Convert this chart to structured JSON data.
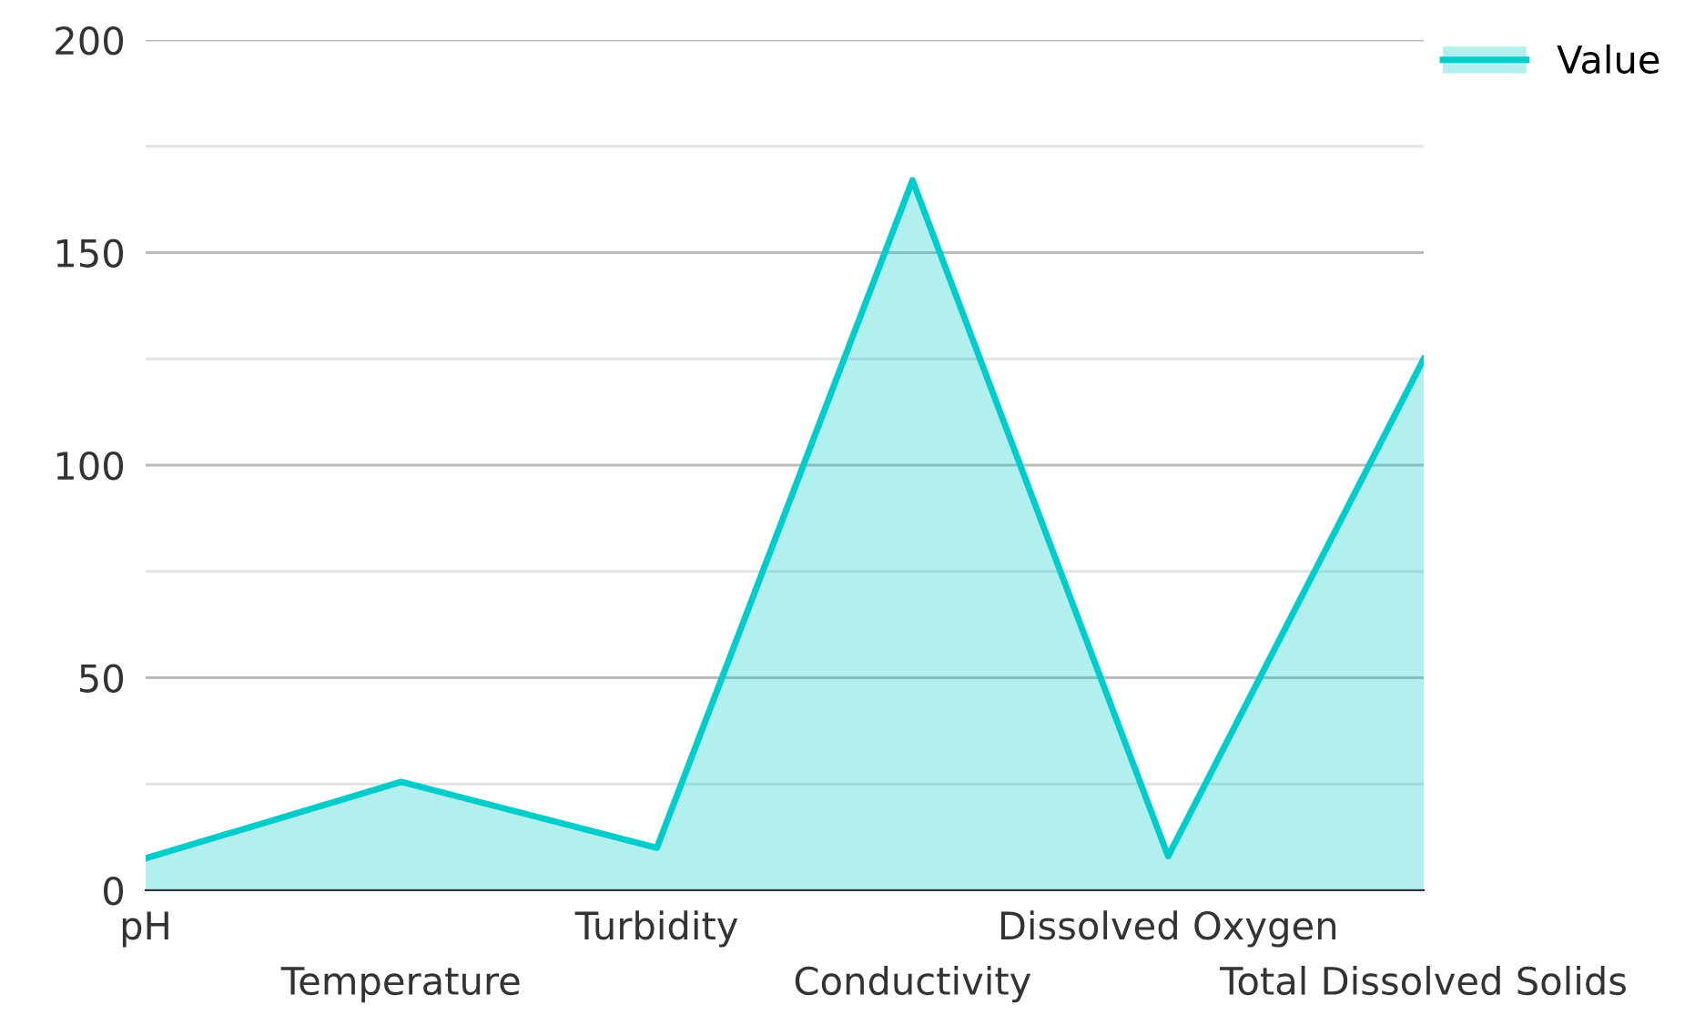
{
  "chart_data": {
    "type": "area",
    "categories": [
      "pH",
      "Temperature",
      "Turbidity",
      "Conductivity",
      "Dissolved Oxygen",
      "Total Dissolved Solids"
    ],
    "series": [
      {
        "name": "Value",
        "color": "#00cccc",
        "values": [
          7.5,
          25.5,
          10,
          167,
          8,
          125
        ]
      }
    ],
    "ylim": [
      0,
      200
    ],
    "yticks": [
      0,
      {
        "value": 25,
        "label": null
      },
      50,
      {
        "value": 75,
        "label": null
      },
      100,
      {
        "value": 125,
        "label": null
      },
      150,
      {
        "value": 175,
        "label": null
      },
      200
    ],
    "grid": "y",
    "legend": "top right",
    "marker": "none",
    "line_style": "solid"
  }
}
